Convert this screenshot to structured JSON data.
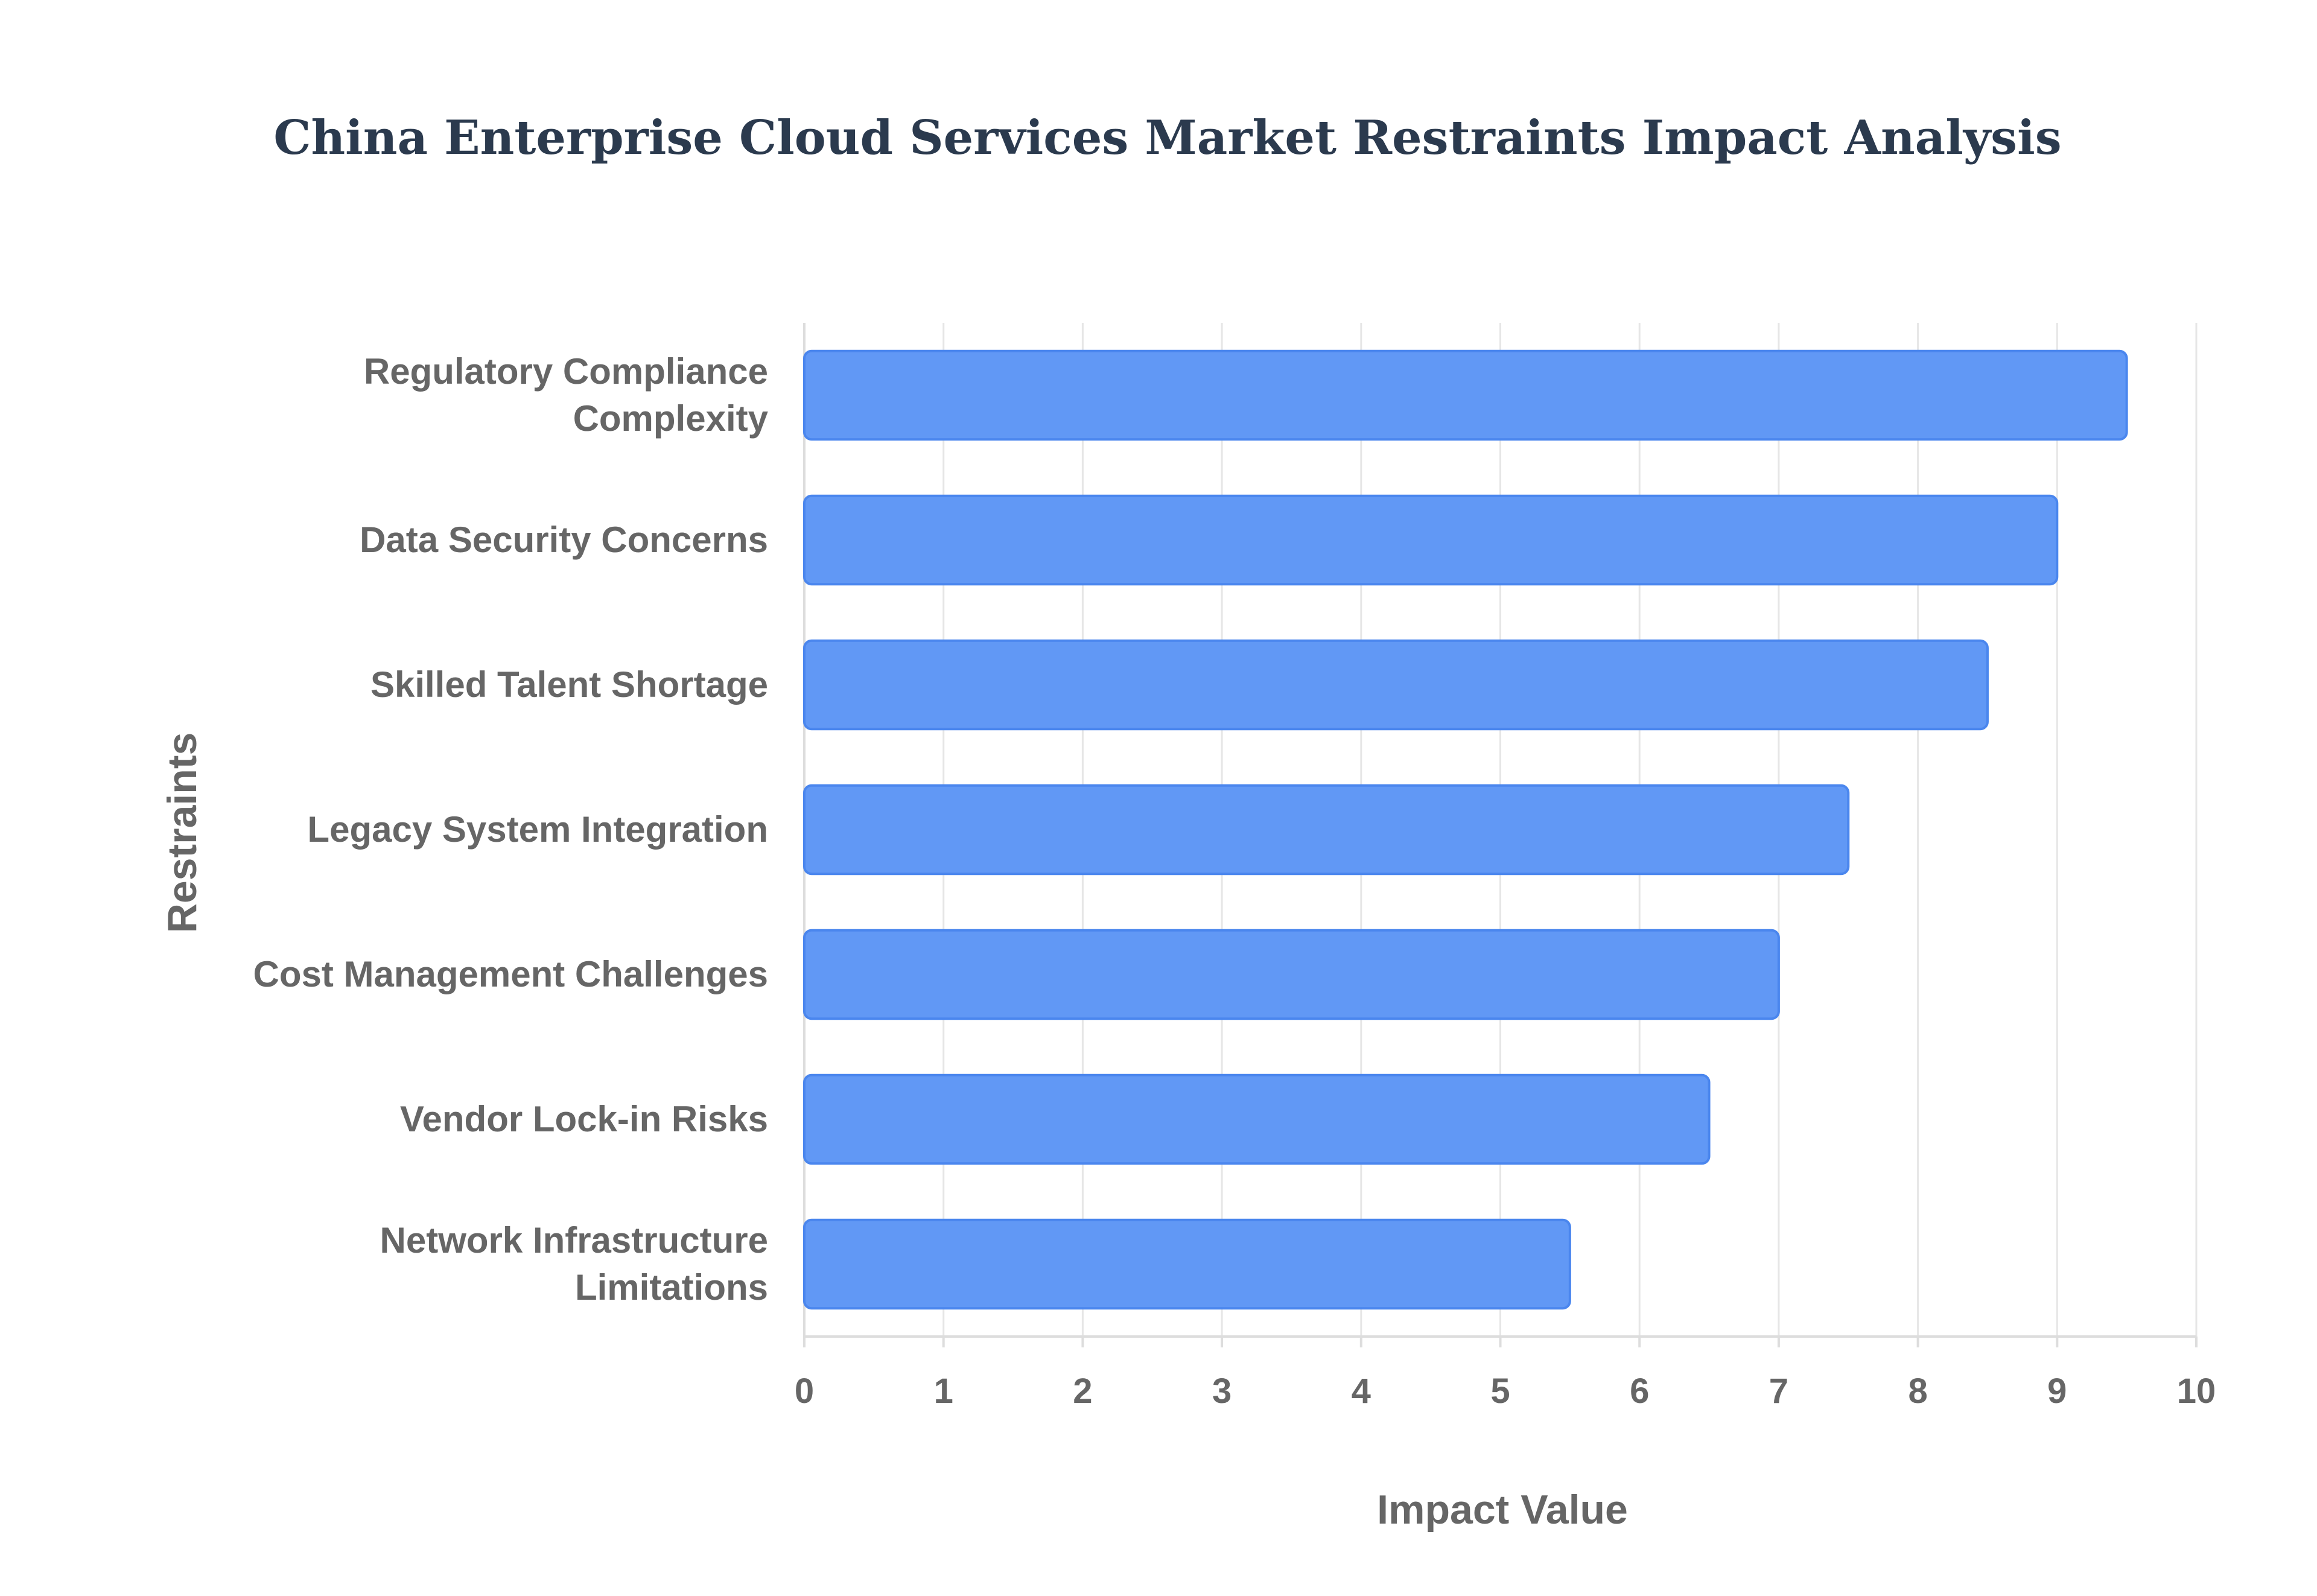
{
  "chart_data": {
    "type": "bar",
    "orientation": "horizontal",
    "title": "China Enterprise Cloud Services Market Restraints Impact Analysis",
    "xlabel": "Impact Value",
    "ylabel": "Restraints",
    "xlim": [
      0,
      10
    ],
    "x_ticks": [
      "0",
      "1",
      "2",
      "3",
      "4",
      "5",
      "6",
      "7",
      "8",
      "9",
      "10"
    ],
    "grid": true,
    "legend": "none",
    "bar_color": "#6198f5",
    "categories": [
      [
        "Regulatory Compliance",
        "Complexity"
      ],
      [
        "Data Security Concerns"
      ],
      [
        "Skilled Talent Shortage"
      ],
      [
        "Legacy System Integration"
      ],
      [
        "Cost Management Challenges"
      ],
      [
        "Vendor Lock-in Risks"
      ],
      [
        "Network Infrastructure",
        "Limitations"
      ]
    ],
    "values": [
      9.5,
      9.0,
      8.5,
      7.5,
      7.0,
      6.5,
      5.5
    ]
  }
}
